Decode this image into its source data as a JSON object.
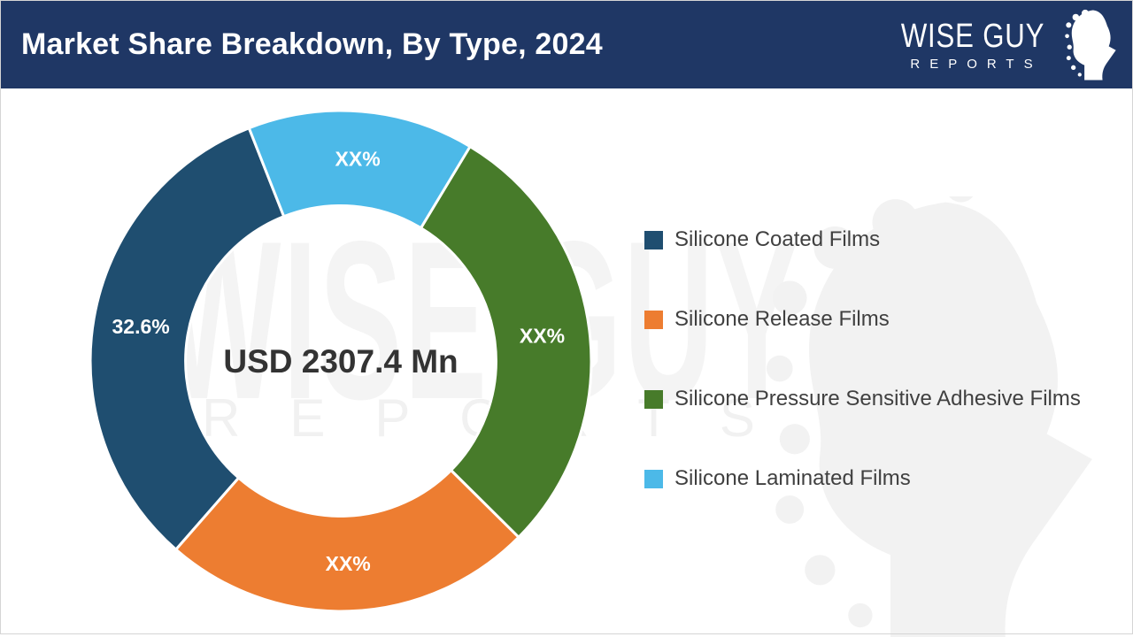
{
  "header": {
    "title": "Market Share Breakdown, By Type, 2024",
    "logo": {
      "line1": "WISE GUY",
      "line2": "REPORTS"
    }
  },
  "watermark": {
    "line1": "WISE GUY",
    "line2": "REPORTS"
  },
  "chart_data": {
    "type": "pie",
    "subtype": "donut",
    "title": "Market Share Breakdown, By Type, 2024",
    "center_label": "USD 2307.4 Mn",
    "start_angle_deg": 111.5,
    "direction": "counterclockwise",
    "inner_radius_ratio": 0.62,
    "legend_position": "right",
    "segments": [
      {
        "label": "Silicone Coated Films",
        "display_value": "32.6%",
        "share_pct_est": 32.6,
        "color": "#1f4e70"
      },
      {
        "label": "Silicone Release Films",
        "display_value": "XX%",
        "share_pct_est": 24.0,
        "color": "#ed7d31"
      },
      {
        "label": "Silicone Pressure Sensitive Adhesive Films",
        "display_value": "XX%",
        "share_pct_est": 28.8,
        "color": "#477b2a"
      },
      {
        "label": "Silicone Laminated Films",
        "display_value": "XX%",
        "share_pct_est": 14.6,
        "color": "#4cb9e8"
      }
    ]
  },
  "colors": {
    "header_bg": "#1f3765",
    "center_text": "#333333",
    "legend_text": "#404040",
    "watermark": "#f2f2f2",
    "segment_gap": "#ffffff"
  }
}
